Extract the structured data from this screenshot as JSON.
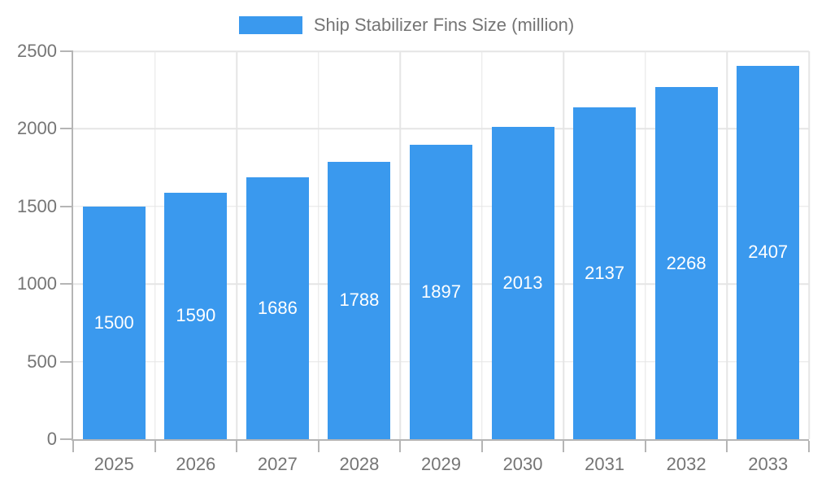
{
  "legend": {
    "label": "Ship Stabilizer Fins Size (million)"
  },
  "chart_data": {
    "type": "bar",
    "title": "Ship Stabilizer Fins Size (million)",
    "categories": [
      "2025",
      "2026",
      "2027",
      "2028",
      "2029",
      "2030",
      "2031",
      "2032",
      "2033"
    ],
    "values": [
      1500,
      1590,
      1686,
      1788,
      1897,
      2013,
      2137,
      2268,
      2407
    ],
    "series_name": "Ship Stabilizer Fins Size (million)",
    "xlabel": "",
    "ylabel": "",
    "ylim": [
      0,
      2500
    ],
    "yticks": [
      0,
      500,
      1000,
      1500,
      2000,
      2500
    ],
    "bar_labels_visible": true,
    "grid": "horizontal and vertical",
    "legend_position": "top-center",
    "colors": {
      "bar": "#3A99EE",
      "bar_label": "#ffffff",
      "axis_line": "#b5b5b5",
      "grid_line": "#e5e5e5",
      "axis_text": "#757575",
      "background": "#ffffff"
    }
  }
}
